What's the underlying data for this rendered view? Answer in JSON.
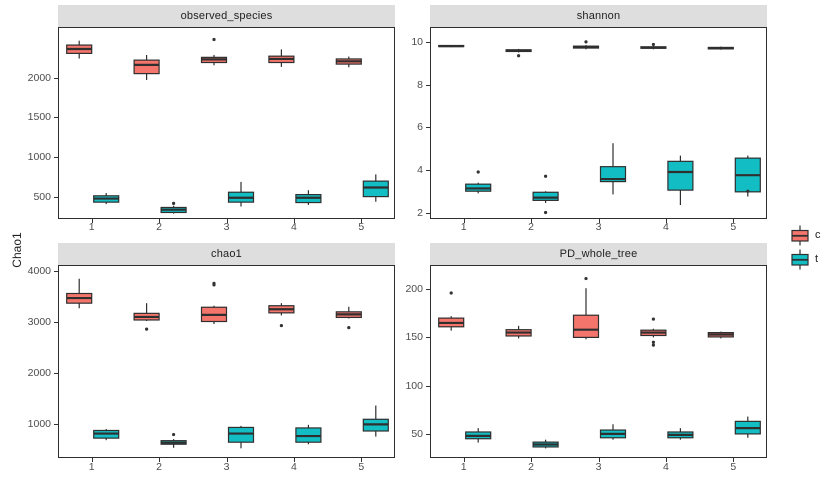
{
  "chart_data": {
    "type": "boxplot",
    "facets": "2x2",
    "ylabel": "Chao1",
    "x_categories": [
      "1",
      "2",
      "3",
      "4",
      "5"
    ],
    "colors": {
      "series_c_fill": "#f4756c",
      "series_t_fill": "#12bec4",
      "box_border": "#2f2f2f",
      "strip_bg": "#dedede",
      "axis_text": "#4d4d4d",
      "panel_border": "#2e2e2e"
    },
    "legend": {
      "position": "right",
      "entries": [
        {
          "label": "c",
          "color": "#f4756c"
        },
        {
          "label": "t",
          "color": "#12bec4"
        }
      ]
    },
    "panels": [
      {
        "title": "observed_species",
        "ylim": [
          220,
          2640
        ],
        "yticks": [
          500,
          1000,
          1500,
          2000
        ],
        "series": {
          "c": [
            {
              "min": 2255,
              "q1": 2320,
              "med": 2375,
              "q3": 2425,
              "max": 2480,
              "out": []
            },
            {
              "min": 1985,
              "q1": 2065,
              "med": 2175,
              "q3": 2235,
              "max": 2300,
              "out": []
            },
            {
              "min": 2170,
              "q1": 2205,
              "med": 2245,
              "q3": 2270,
              "max": 2300,
              "out": [
                2495
              ]
            },
            {
              "min": 2150,
              "q1": 2205,
              "med": 2250,
              "q3": 2285,
              "max": 2370,
              "out": []
            },
            {
              "min": 2145,
              "q1": 2185,
              "med": 2220,
              "q3": 2250,
              "max": 2280,
              "out": []
            }
          ],
          "t": [
            {
              "min": 420,
              "q1": 445,
              "med": 490,
              "q3": 525,
              "max": 560,
              "out": []
            },
            {
              "min": 300,
              "q1": 315,
              "med": 350,
              "q3": 378,
              "max": 400,
              "out": [
                430
              ]
            },
            {
              "min": 390,
              "q1": 445,
              "med": 500,
              "q3": 570,
              "max": 700,
              "out": []
            },
            {
              "min": 410,
              "q1": 440,
              "med": 500,
              "q3": 540,
              "max": 595,
              "out": []
            },
            {
              "min": 450,
              "q1": 515,
              "med": 630,
              "q3": 710,
              "max": 795,
              "out": []
            }
          ]
        }
      },
      {
        "title": "shannon",
        "ylim": [
          1.7,
          10.7
        ],
        "yticks": [
          2,
          4,
          6,
          8,
          10
        ],
        "series": {
          "c": [
            {
              "min": 9.8,
              "q1": 9.83,
              "med": 9.85,
              "q3": 9.88,
              "max": 9.9,
              "out": []
            },
            {
              "min": 9.55,
              "q1": 9.6,
              "med": 9.63,
              "q3": 9.68,
              "max": 9.72,
              "out": [
                9.4
              ]
            },
            {
              "min": 9.7,
              "q1": 9.76,
              "med": 9.8,
              "q3": 9.85,
              "max": 9.9,
              "out": [
                10.05
              ]
            },
            {
              "min": 9.7,
              "q1": 9.75,
              "med": 9.78,
              "q3": 9.82,
              "max": 9.87,
              "out": [
                9.93
              ]
            },
            {
              "min": 9.68,
              "q1": 9.72,
              "med": 9.75,
              "q3": 9.79,
              "max": 9.83,
              "out": []
            }
          ],
          "t": [
            {
              "min": 2.95,
              "q1": 3.05,
              "med": 3.18,
              "q3": 3.38,
              "max": 3.45,
              "out": [
                3.95
              ]
            },
            {
              "min": 2.5,
              "q1": 2.62,
              "med": 2.75,
              "q3": 3.0,
              "max": 3.05,
              "out": [
                3.75,
                2.05
              ]
            },
            {
              "min": 2.9,
              "q1": 3.5,
              "med": 3.62,
              "q3": 4.2,
              "max": 5.3,
              "out": []
            },
            {
              "min": 2.4,
              "q1": 3.1,
              "med": 3.95,
              "q3": 4.45,
              "max": 4.72,
              "out": []
            },
            {
              "min": 2.8,
              "q1": 3.02,
              "med": 3.8,
              "q3": 4.6,
              "max": 4.72,
              "out": [
                3.05
              ]
            }
          ]
        }
      },
      {
        "title": "chao1",
        "ylim": [
          330,
          4120
        ],
        "yticks": [
          1000,
          2000,
          3000,
          4000
        ],
        "series": {
          "c": [
            {
              "min": 3290,
              "q1": 3390,
              "med": 3490,
              "q3": 3580,
              "max": 3870,
              "out": []
            },
            {
              "min": 3040,
              "q1": 3060,
              "med": 3120,
              "q3": 3190,
              "max": 3390,
              "out": [
                2880
              ]
            },
            {
              "min": 2980,
              "q1": 3030,
              "med": 3160,
              "q3": 3310,
              "max": 3340,
              "out": [
                3750,
                3780
              ]
            },
            {
              "min": 3150,
              "q1": 3200,
              "med": 3270,
              "q3": 3340,
              "max": 3390,
              "out": [
                2950
              ]
            },
            {
              "min": 3090,
              "q1": 3110,
              "med": 3170,
              "q3": 3220,
              "max": 3320,
              "out": [
                2910
              ]
            }
          ],
          "t": [
            {
              "min": 700,
              "q1": 740,
              "med": 830,
              "q3": 890,
              "max": 920,
              "out": []
            },
            {
              "min": 550,
              "q1": 620,
              "med": 650,
              "q3": 690,
              "max": 720,
              "out": [
                810
              ]
            },
            {
              "min": 540,
              "q1": 660,
              "med": 830,
              "q3": 950,
              "max": 980,
              "out": []
            },
            {
              "min": 620,
              "q1": 660,
              "med": 780,
              "q3": 940,
              "max": 1000,
              "out": []
            },
            {
              "min": 770,
              "q1": 880,
              "med": 1010,
              "q3": 1110,
              "max": 1380,
              "out": []
            }
          ]
        }
      },
      {
        "title": "PD_whole_tree",
        "ylim": [
          25,
          225
        ],
        "yticks": [
          50,
          100,
          150,
          200
        ],
        "series": {
          "c": [
            {
              "min": 158,
              "q1": 162,
              "med": 166,
              "q3": 171,
              "max": 173,
              "out": [
                197
              ]
            },
            {
              "min": 150,
              "q1": 152.5,
              "med": 156,
              "q3": 159,
              "max": 163,
              "out": []
            },
            {
              "min": 149,
              "q1": 151,
              "med": 159,
              "q3": 174,
              "max": 202,
              "out": [
                212
              ]
            },
            {
              "min": 151,
              "q1": 153,
              "med": 156,
              "q3": 158.5,
              "max": 160,
              "out": [
                170,
                146,
                143
              ]
            },
            {
              "min": 150,
              "q1": 151.5,
              "med": 154,
              "q3": 156,
              "max": 157,
              "out": []
            }
          ],
          "t": [
            {
              "min": 42,
              "q1": 46,
              "med": 49,
              "q3": 53,
              "max": 57,
              "out": []
            },
            {
              "min": 36,
              "q1": 37.5,
              "med": 40,
              "q3": 42.5,
              "max": 45,
              "out": []
            },
            {
              "min": 45,
              "q1": 47,
              "med": 51,
              "q3": 55,
              "max": 61,
              "out": []
            },
            {
              "min": 45,
              "q1": 47,
              "med": 50,
              "q3": 53,
              "max": 57,
              "out": []
            },
            {
              "min": 47,
              "q1": 51,
              "med": 57,
              "q3": 64,
              "max": 69,
              "out": []
            }
          ]
        }
      }
    ]
  }
}
